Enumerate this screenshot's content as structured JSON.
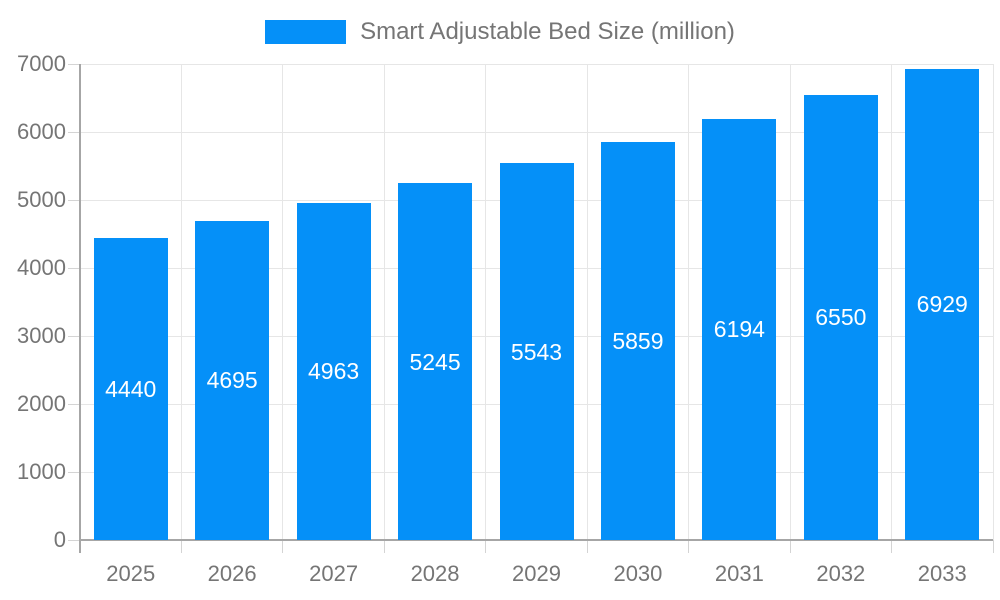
{
  "chart_data": {
    "type": "bar",
    "title": "Smart Adjustable Bed Size (million)",
    "series_name": "Smart Adjustable Bed Size (million)",
    "categories": [
      "2025",
      "2026",
      "2027",
      "2028",
      "2029",
      "2030",
      "2031",
      "2032",
      "2033"
    ],
    "values": [
      4440,
      4695,
      4963,
      5245,
      5543,
      5859,
      6194,
      6550,
      6929
    ],
    "value_labels_position": "inside-center",
    "xlabel": "",
    "ylabel": "",
    "ylim": [
      0,
      7000
    ],
    "yticks": [
      0,
      1000,
      2000,
      3000,
      4000,
      5000,
      6000,
      7000
    ],
    "grid": true,
    "legend_position": "top-center",
    "bar_color": "#0590F8",
    "value_label_color": "#FFFFFF",
    "axis_text_color": "#757575",
    "grid_color": "#E6E6E6",
    "axis_line_color": "#A6A6A6",
    "background_color": "#FFFFFF"
  }
}
